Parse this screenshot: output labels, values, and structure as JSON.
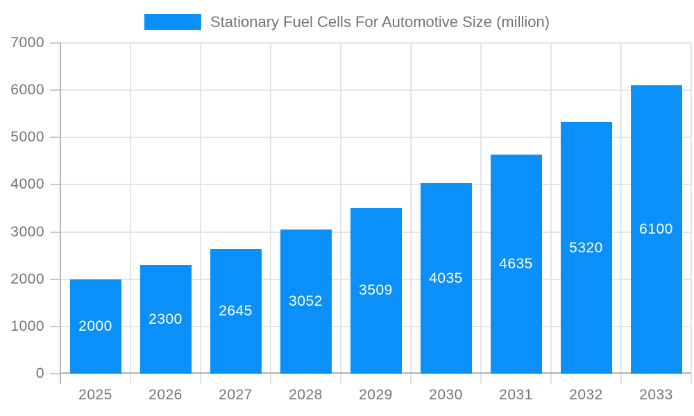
{
  "chart_data": {
    "type": "bar",
    "title": "Stationary Fuel Cells For Automotive Size (million)",
    "legend_position": "top",
    "categories": [
      "2025",
      "2026",
      "2027",
      "2028",
      "2029",
      "2030",
      "2031",
      "2032",
      "2033"
    ],
    "values": [
      2000,
      2300,
      2645,
      3052,
      3509,
      4035,
      4635,
      5320,
      6100
    ],
    "bar_value_labels": [
      "2000",
      "2300",
      "2645",
      "3052",
      "3509",
      "4035",
      "4635",
      "5320",
      "6100"
    ],
    "xlabel": "",
    "ylabel": "",
    "ylim": [
      0,
      7000
    ],
    "yticks": [
      0,
      1000,
      2000,
      3000,
      4000,
      5000,
      6000,
      7000
    ],
    "grid": true,
    "colors": {
      "bar": "#0a90f8",
      "bar_label_text": "#ffffff",
      "axis_text": "#757575",
      "title_text": "#757575",
      "gridline": "#e5e5e5",
      "axis_line": "#b3b3b3",
      "y_tick": "#c9c9c9",
      "x_tick": "#e0e0e0",
      "background": "#ffffff"
    }
  }
}
